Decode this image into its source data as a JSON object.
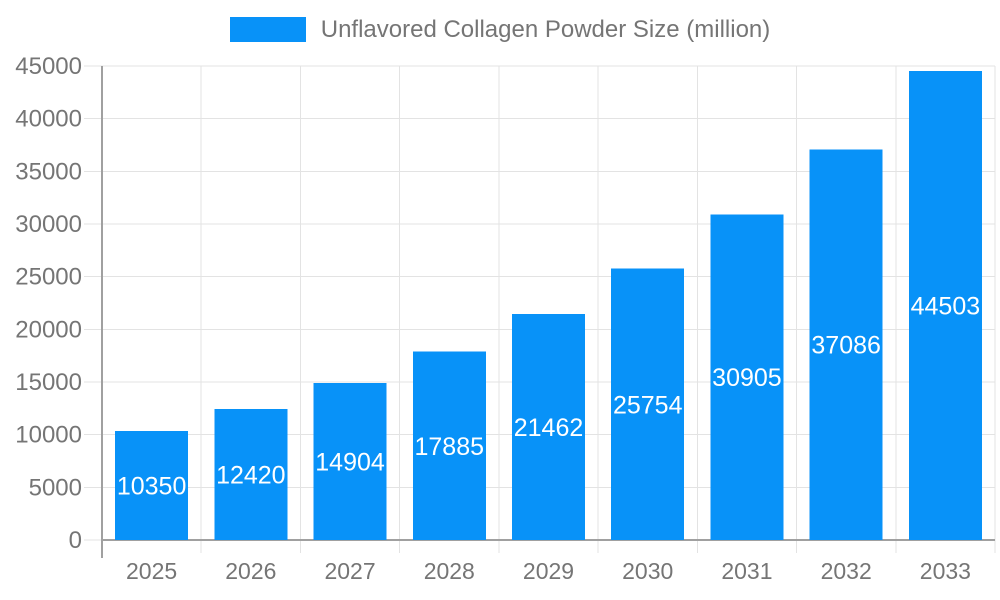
{
  "chart_data": {
    "type": "bar",
    "title": "Unflavored Collagen Powder Size (million)",
    "categories": [
      "2025",
      "2026",
      "2027",
      "2028",
      "2029",
      "2030",
      "2031",
      "2032",
      "2033"
    ],
    "values": [
      10350,
      12420,
      14904,
      17885,
      21462,
      25754,
      30905,
      37086,
      44503
    ],
    "xlabel": "",
    "ylabel": "",
    "ylim": [
      0,
      45000
    ],
    "y_ticks": [
      0,
      5000,
      10000,
      15000,
      20000,
      25000,
      30000,
      35000,
      40000,
      45000
    ],
    "grid": true,
    "legend_position": "top-center",
    "bar_color": "#0892f8",
    "value_label_color": "#ffffff",
    "axis_text_color": "#757575",
    "grid_color": "#e3e3e3",
    "axis_line_color": "#a0a0a0",
    "background_color": "#ffffff"
  }
}
